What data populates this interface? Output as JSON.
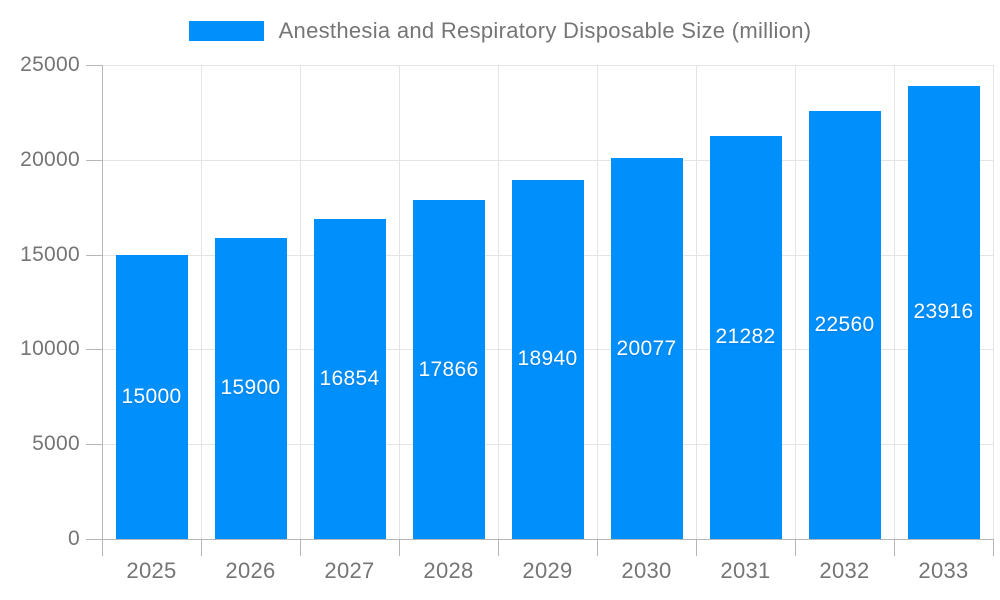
{
  "chart_data": {
    "type": "bar",
    "title": "Anesthesia and Respiratory Disposable Size (million)",
    "categories": [
      "2025",
      "2026",
      "2027",
      "2028",
      "2029",
      "2030",
      "2031",
      "2032",
      "2033"
    ],
    "values": [
      15000,
      15900,
      16854,
      17866,
      18940,
      20077,
      21282,
      22560,
      23916
    ],
    "y_ticks": [
      "0",
      "5000",
      "10000",
      "15000",
      "20000",
      "25000"
    ],
    "ylim": [
      0,
      25000
    ],
    "xlabel": "",
    "ylabel": "",
    "grid": true,
    "legend_position": "top",
    "colors": {
      "bar": "#008FFB",
      "axis_label": "#757575",
      "gridline": "#e4e4e4",
      "axis_line": "#b6b6b6",
      "data_label": "#ffffff"
    }
  }
}
